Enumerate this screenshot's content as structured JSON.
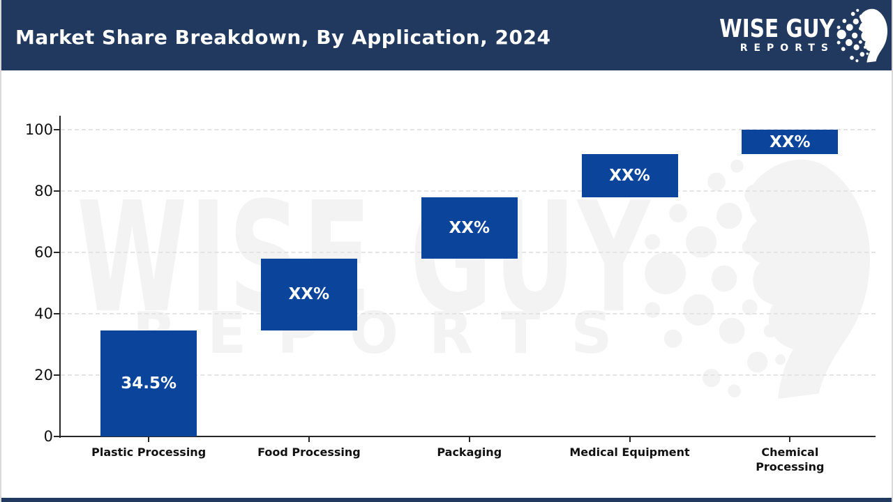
{
  "header": {
    "title": "Market Share Breakdown, By Application, 2024",
    "logo": {
      "line1": "WISE GUY",
      "line2": "REPORTS"
    }
  },
  "watermark": {
    "line1": "WISE GUY",
    "line2": "REPORTS"
  },
  "colors": {
    "header_background": "#22395f",
    "bar_fill": "#0a449b",
    "bar_label": "#ffffff",
    "gridline": "#e4e4e4",
    "axis": "#262626",
    "watermark": "#f3f3f4",
    "footer_strip": "#22395f"
  },
  "chart_data": {
    "type": "bar",
    "subtype": "waterfall",
    "title": "Market Share Breakdown, By Application, 2024",
    "categories": [
      "Plastic Processing",
      "Food Processing",
      "Packaging",
      "Medical Equipment",
      "Chemical\nProcessing"
    ],
    "segments": [
      {
        "category": "Plastic Processing",
        "start": 0,
        "end": 34.5,
        "label": "34.5%"
      },
      {
        "category": "Food Processing",
        "start": 34.5,
        "end": 58,
        "label": "XX%"
      },
      {
        "category": "Packaging",
        "start": 58,
        "end": 78,
        "label": "XX%"
      },
      {
        "category": "Medical Equipment",
        "start": 78,
        "end": 92,
        "label": "XX%"
      },
      {
        "category": "Chemical\nProcessing",
        "start": 92,
        "end": 100,
        "label": "XX%"
      }
    ],
    "xlabel": "",
    "ylabel": "",
    "ylim": [
      0,
      100
    ],
    "yticks": [
      0,
      20,
      40,
      60,
      80,
      100
    ],
    "grid": "horizontal-dashed",
    "legend": "none"
  }
}
